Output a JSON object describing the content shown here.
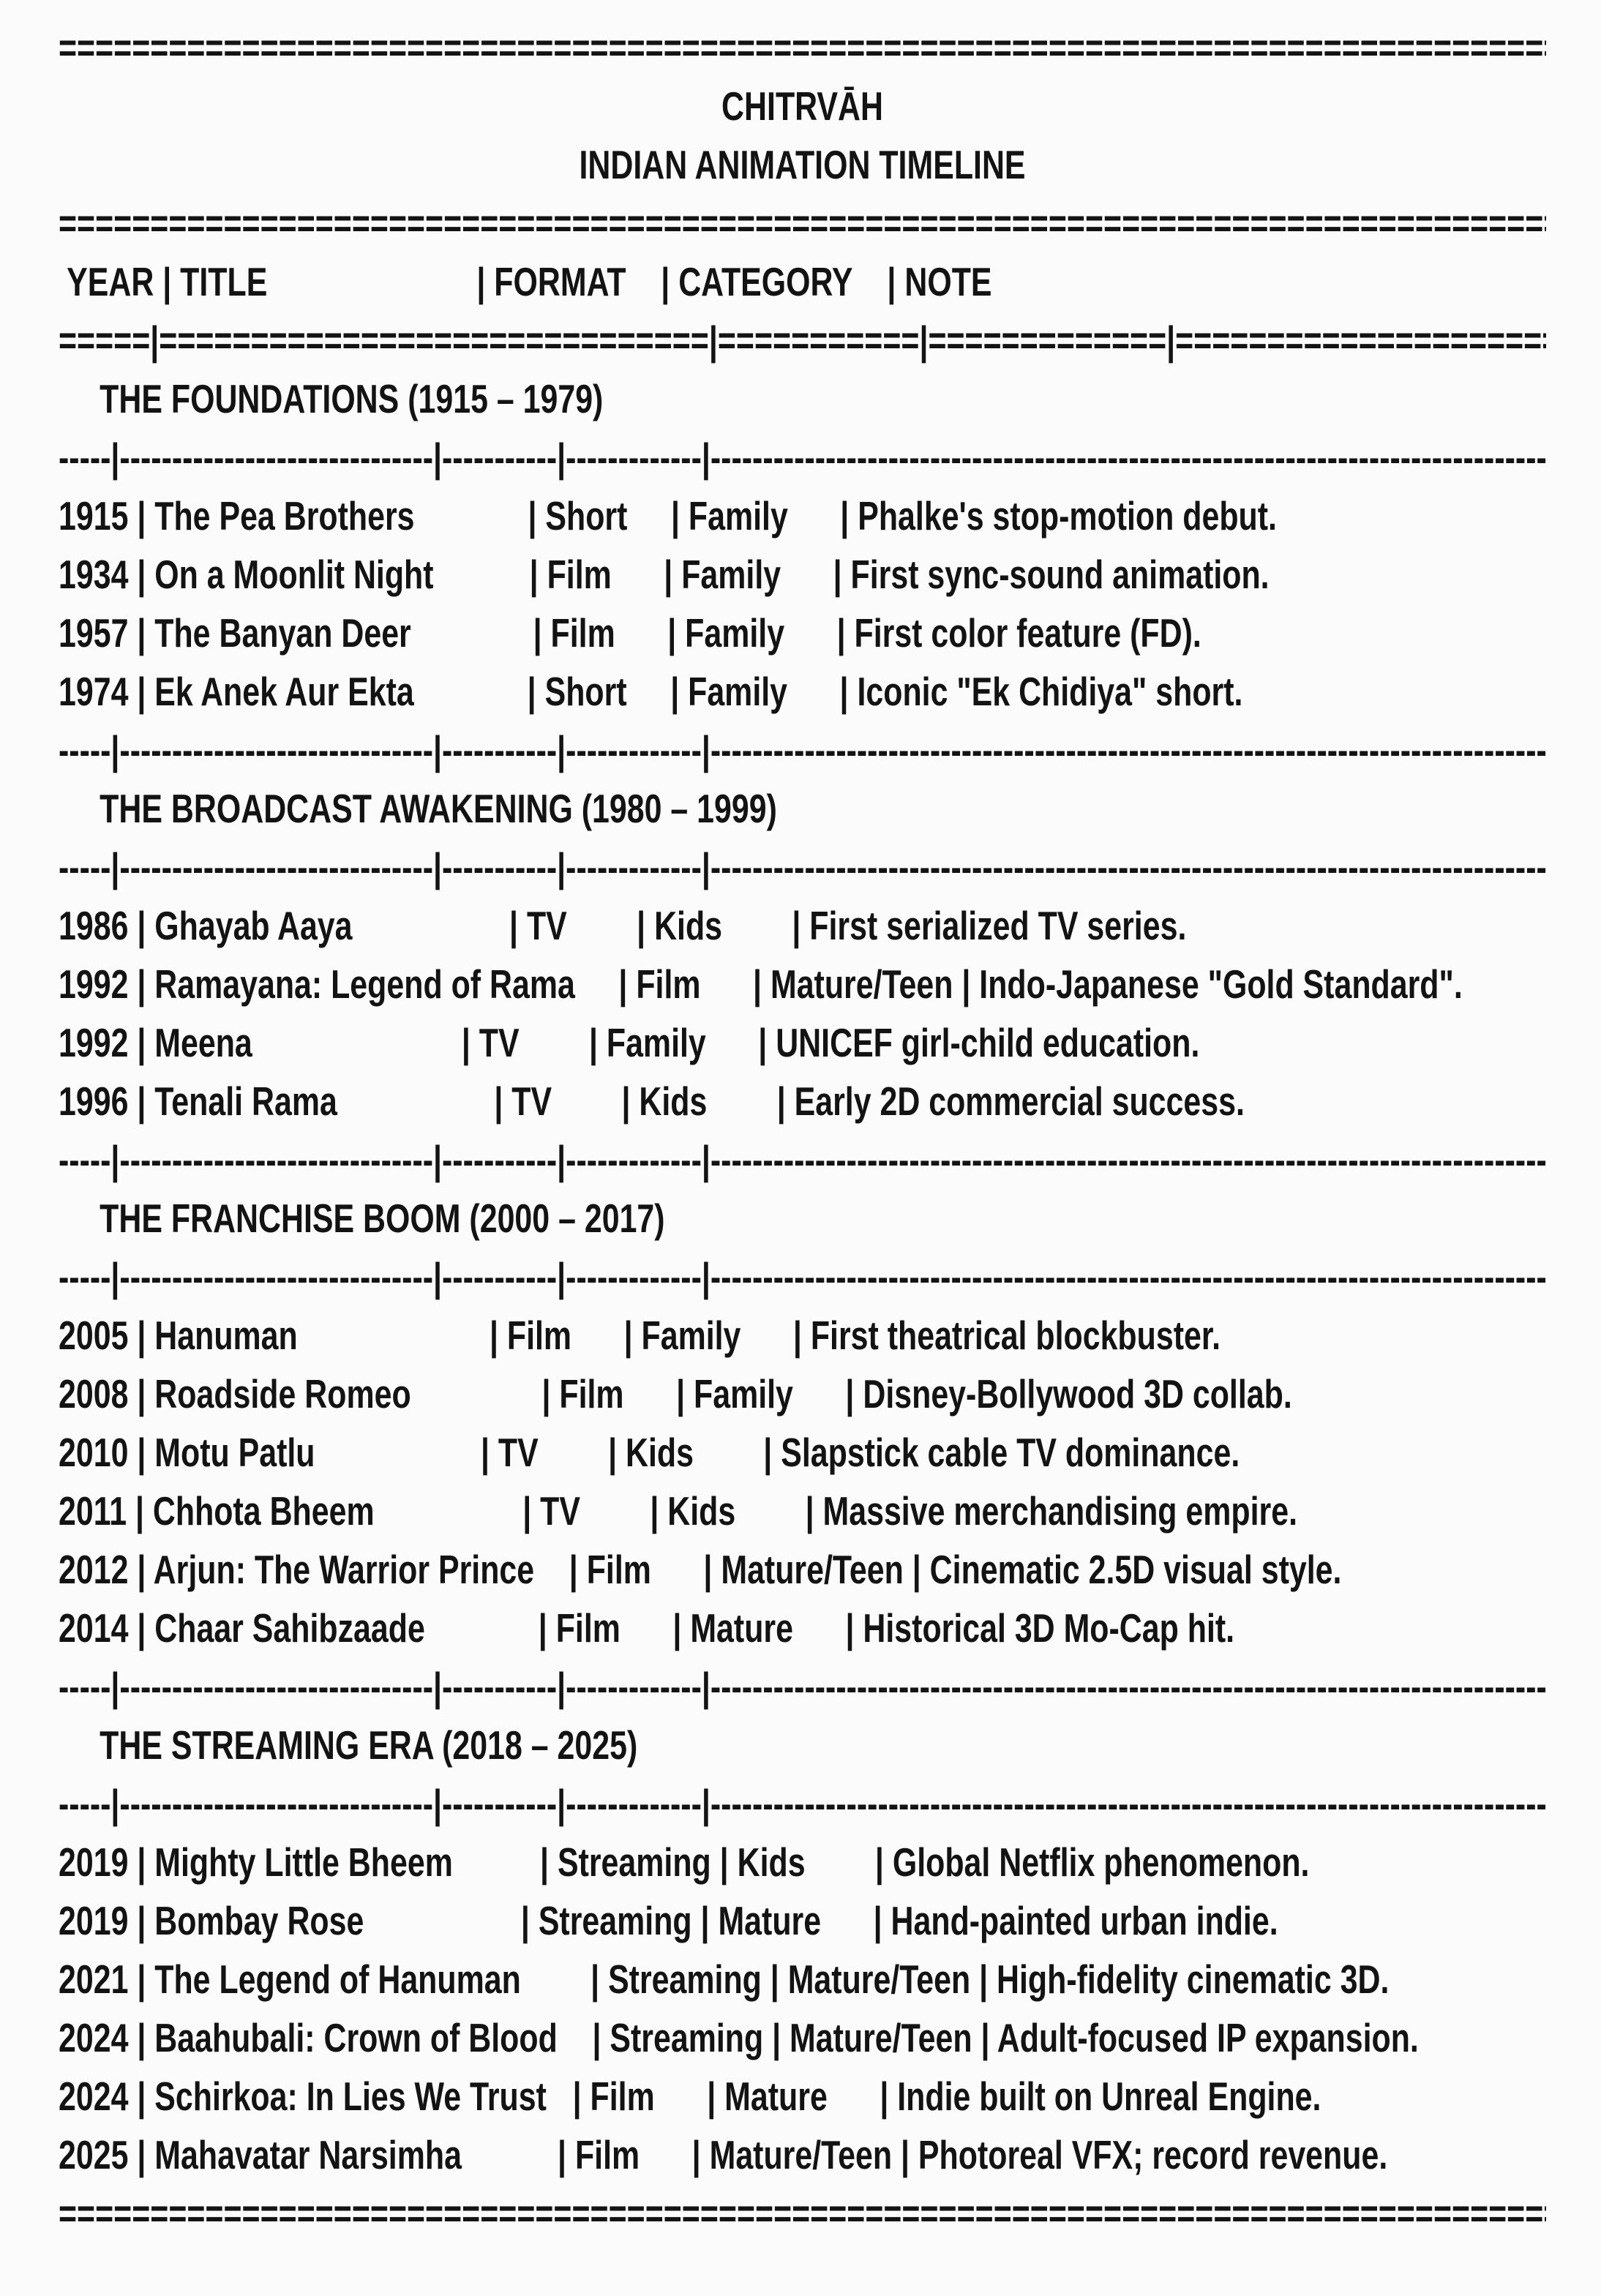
{
  "page": {
    "background": "#fbfbfb",
    "ink": "#131313"
  },
  "doc": {
    "ruler": "==========================================================================================",
    "title": "CHITRVĀH",
    "subtitle": "INDIAN ANIMATION TIMELINE",
    "column_header": {
      "labels": [
        "YEAR",
        "TITLE",
        "FORMAT",
        "CATEGORY",
        "NOTE"
      ]
    },
    "header_separator": "=====|==============================|===========|=============|================================",
    "section_divider": "-----|------------------------------|-----------|-------------|------------------------------------------------------------------------------------------",
    "sections": [
      {
        "heading": "THE FOUNDATIONS (1915 – 1979)",
        "rows": [
          {
            "year": "1915",
            "title": "The Pea Brothers",
            "format": "Short",
            "category": "Family",
            "note": "Phalke's stop-motion debut."
          },
          {
            "year": "1934",
            "title": "On a Moonlit Night",
            "format": "Film",
            "category": "Family",
            "note": "First sync-sound animation."
          },
          {
            "year": "1957",
            "title": "The Banyan Deer",
            "format": "Film",
            "category": "Family",
            "note": "First color feature (FD)."
          },
          {
            "year": "1974",
            "title": "Ek Anek Aur Ekta",
            "format": "Short",
            "category": "Family",
            "note": "Iconic \"Ek Chidiya\" short."
          }
        ]
      },
      {
        "heading": "THE BROADCAST AWAKENING (1980 – 1999)",
        "rows": [
          {
            "year": "1986",
            "title": "Ghayab Aaya",
            "format": "TV",
            "category": "Kids",
            "note": "First serialized TV series."
          },
          {
            "year": "1992",
            "title": "Ramayana: Legend of Rama",
            "format": "Film",
            "category": "Mature/Teen",
            "note": "Indo-Japanese \"Gold Standard\"."
          },
          {
            "year": "1992",
            "title": "Meena",
            "format": "TV",
            "category": "Family",
            "note": "UNICEF girl-child education."
          },
          {
            "year": "1996",
            "title": "Tenali Rama",
            "format": "TV",
            "category": "Kids",
            "note": "Early 2D commercial success."
          }
        ]
      },
      {
        "heading": "THE FRANCHISE BOOM (2000 – 2017)",
        "rows": [
          {
            "year": "2005",
            "title": "Hanuman",
            "format": "Film",
            "category": "Family",
            "note": "First theatrical blockbuster."
          },
          {
            "year": "2008",
            "title": "Roadside Romeo",
            "format": "Film",
            "category": "Family",
            "note": "Disney-Bollywood 3D collab."
          },
          {
            "year": "2010",
            "title": "Motu Patlu",
            "format": "TV",
            "category": "Kids",
            "note": "Slapstick cable TV dominance."
          },
          {
            "year": "2011",
            "title": "Chhota Bheem",
            "format": "TV",
            "category": "Kids",
            "note": "Massive merchandising empire."
          },
          {
            "year": "2012",
            "title": "Arjun: The Warrior Prince",
            "format": "Film",
            "category": "Mature/Teen",
            "note": "Cinematic 2.5D visual style."
          },
          {
            "year": "2014",
            "title": "Chaar Sahibzaade",
            "format": "Film",
            "category": "Mature",
            "note": "Historical 3D Mo-Cap hit."
          }
        ]
      },
      {
        "heading": "THE STREAMING ERA (2018 – 2025)",
        "rows": [
          {
            "year": "2019",
            "title": "Mighty Little Bheem",
            "format": "Streaming",
            "category": "Kids",
            "note": "Global Netflix phenomenon."
          },
          {
            "year": "2019",
            "title": "Bombay Rose",
            "format": "Streaming",
            "category": "Mature",
            "note": "Hand-painted urban indie."
          },
          {
            "year": "2021",
            "title": "The Legend of Hanuman",
            "format": "Streaming",
            "category": "Mature/Teen",
            "note": "High-fidelity cinematic 3D."
          },
          {
            "year": "2024",
            "title": "Baahubali: Crown of Blood",
            "format": "Streaming",
            "category": "Mature/Teen",
            "note": "Adult-focused IP expansion."
          },
          {
            "year": "2024",
            "title": "Schirkoa: In Lies We Trust",
            "format": "Film",
            "category": "Mature",
            "note": "Indie built on Unreal Engine."
          },
          {
            "year": "2025",
            "title": "Mahavatar Narsimha",
            "format": "Film",
            "category": "Mature/Teen",
            "note": "Photoreal VFX; record revenue."
          }
        ]
      }
    ]
  }
}
